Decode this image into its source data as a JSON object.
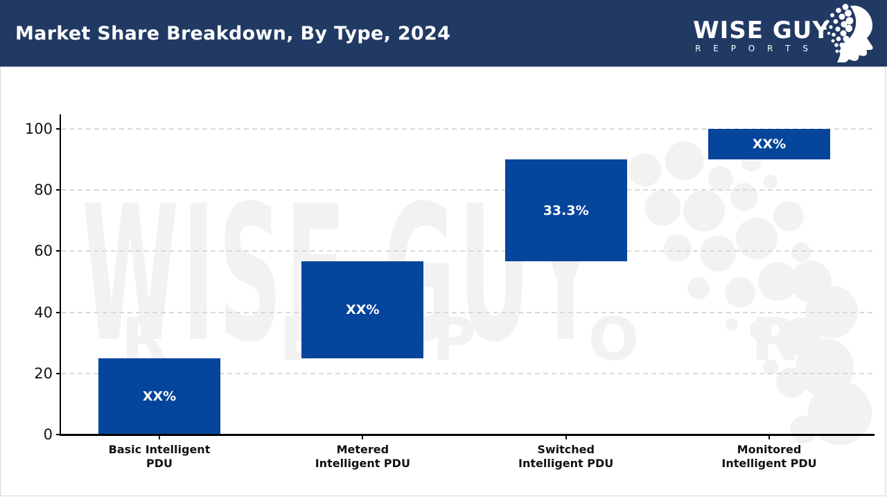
{
  "header": {
    "title": "Market Share Breakdown, By Type, 2024",
    "logo_line1": "WISE GUY",
    "logo_line2": "R E P O R T S"
  },
  "watermark": {
    "line1": "WISE GUY",
    "line2": "R E P O R T S"
  },
  "chart_data": {
    "type": "bar",
    "subtype": "waterfall",
    "title": "Market Share Breakdown, By Type, 2024",
    "categories": [
      "Basic Intelligent PDU",
      "Metered Intelligent PDU",
      "Switched Intelligent PDU",
      "Monitored Intelligent PDU"
    ],
    "category_lines": [
      [
        "Basic Intelligent",
        "PDU"
      ],
      [
        "Metered",
        "Intelligent PDU"
      ],
      [
        "Switched",
        "Intelligent PDU"
      ],
      [
        "Monitored",
        "Intelligent PDU"
      ]
    ],
    "segments": [
      {
        "category": "Basic Intelligent PDU",
        "start": 0,
        "end": 25,
        "label": "XX%"
      },
      {
        "category": "Metered Intelligent PDU",
        "start": 25,
        "end": 56.7,
        "label": "XX%"
      },
      {
        "category": "Switched Intelligent PDU",
        "start": 56.7,
        "end": 90,
        "label": "33.3%"
      },
      {
        "category": "Monitored Intelligent PDU",
        "start": 90,
        "end": 100,
        "label": "XX%"
      }
    ],
    "ylim": [
      0,
      100
    ],
    "yticks": [
      0,
      20,
      40,
      60,
      80,
      100
    ],
    "xlabel": "",
    "ylabel": "",
    "grid": "horizontal-dashed",
    "legend": "none",
    "bar_color": "#05459b",
    "bar_label_color": "#ffffff",
    "axis_color": "#000000",
    "grid_color": "#d9d9d9"
  }
}
